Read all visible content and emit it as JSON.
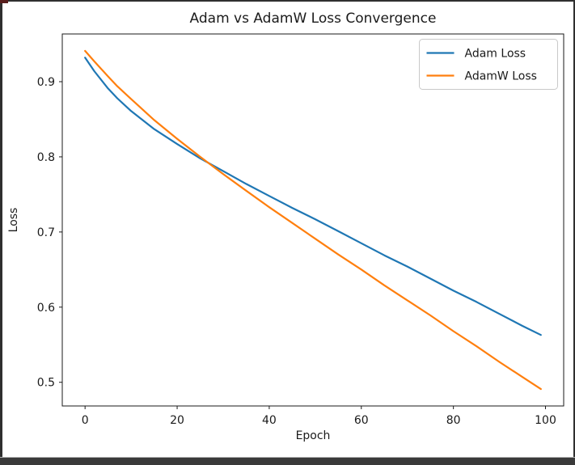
{
  "window": {
    "border_color": "#2f2f2f",
    "bottom_bar_color": "#3a3a3a",
    "corner_accent_color": "#571d1c",
    "background_color": "#ffffff"
  },
  "chart_data": {
    "type": "line",
    "title": "Adam vs AdamW Loss Convergence",
    "xlabel": "Epoch",
    "ylabel": "Loss",
    "grid": false,
    "legend_position": "upper right",
    "x": [
      0,
      2,
      5,
      7,
      10,
      15,
      20,
      25,
      30,
      35,
      40,
      45,
      50,
      55,
      60,
      65,
      70,
      75,
      80,
      85,
      90,
      95,
      99
    ],
    "series": [
      {
        "name": "Adam Loss",
        "color": "#1f77b4",
        "values": [
          0.932,
          0.914,
          0.891,
          0.878,
          0.861,
          0.837,
          0.817,
          0.798,
          0.781,
          0.764,
          0.748,
          0.732,
          0.717,
          0.701,
          0.685,
          0.669,
          0.654,
          0.638,
          0.622,
          0.607,
          0.591,
          0.575,
          0.563
        ]
      },
      {
        "name": "AdamW Loss",
        "color": "#ff7f0e",
        "values": [
          0.941,
          0.927,
          0.907,
          0.894,
          0.877,
          0.849,
          0.824,
          0.8,
          0.777,
          0.755,
          0.733,
          0.712,
          0.691,
          0.67,
          0.65,
          0.629,
          0.609,
          0.589,
          0.568,
          0.548,
          0.527,
          0.507,
          0.491
        ]
      }
    ],
    "xticks": [
      0,
      20,
      40,
      60,
      80,
      100
    ],
    "yticks": [
      0.5,
      0.6,
      0.7,
      0.8,
      0.9
    ],
    "xlim": [
      -4.95,
      103.95
    ],
    "ylim": [
      0.4685,
      0.9635
    ],
    "annotations": {
      "crossover_epoch_approx": 27,
      "crossover_loss_approx": 0.79
    },
    "styles": {
      "line_width": 2.2,
      "spine_color": "#1a1a1a",
      "text_color": "#1a1a1a",
      "legend_border_color": "#c9c9c9",
      "legend_background": "#ffffff"
    }
  }
}
